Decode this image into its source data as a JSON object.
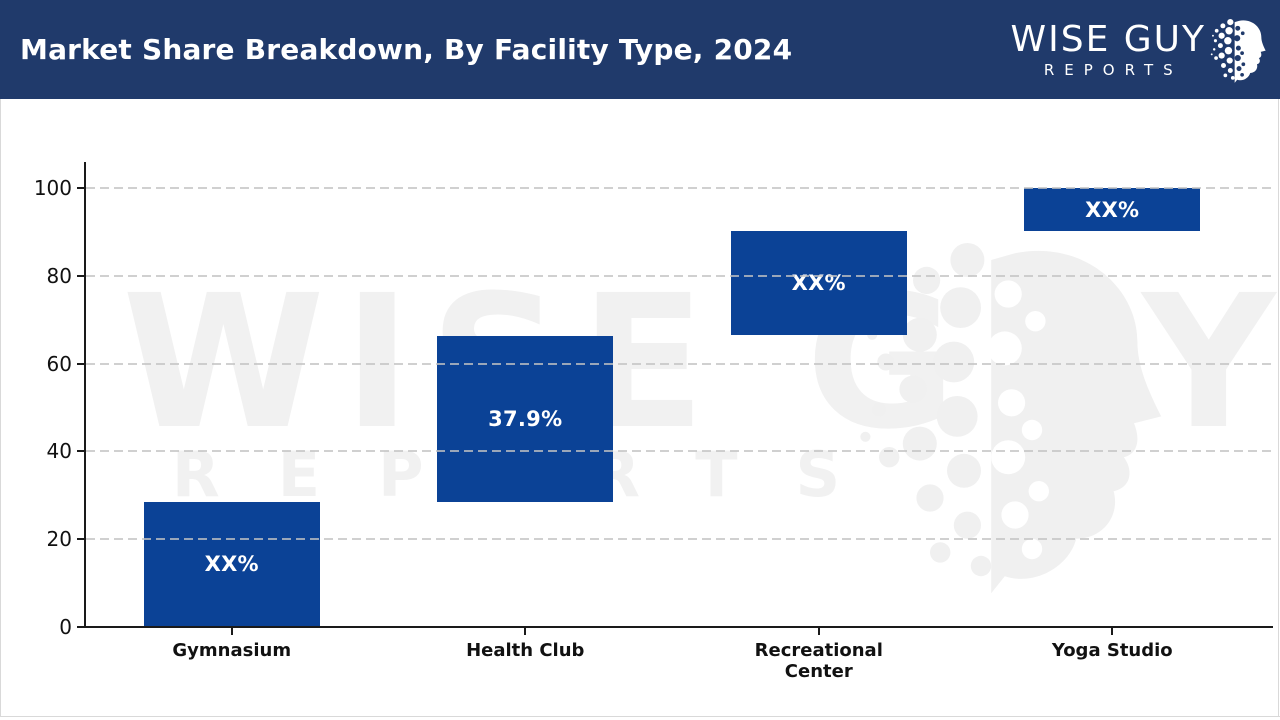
{
  "header": {
    "title": "Market Share Breakdown, By Facility Type, 2024",
    "logo": {
      "line1": "WISE GUY",
      "line2": "REPORTS"
    }
  },
  "watermark": {
    "line1": "WISE GUY",
    "line2": "REPORTS"
  },
  "colors": {
    "header_bg": "#203a6b",
    "bar": "#0b4296",
    "grid": "#c8c8c8",
    "axis_text": "#111111",
    "watermark": "#f1f1f1"
  },
  "chart_data": {
    "type": "waterfall",
    "title": "Market Share Breakdown, By Facility Type, 2024",
    "categories": [
      "Gymnasium",
      "Health Club",
      "Recreational Center",
      "Yoga Studio"
    ],
    "segments": [
      {
        "category": "Gymnasium",
        "start": 0,
        "end": 28.5,
        "label": "XX%"
      },
      {
        "category": "Health Club",
        "start": 28.5,
        "end": 66.4,
        "label": "37.9%"
      },
      {
        "category": "Recreational Center",
        "start": 66.4,
        "end": 90.2,
        "label": "XX%"
      },
      {
        "category": "Yoga Studio",
        "start": 90.2,
        "end": 100,
        "label": "XX%"
      }
    ],
    "xlabel": "",
    "ylabel": "",
    "ylim": [
      0,
      100
    ],
    "yticks": [
      0,
      20,
      40,
      60,
      80,
      100
    ],
    "grid": "dashed-horizontal",
    "legend": "none"
  }
}
